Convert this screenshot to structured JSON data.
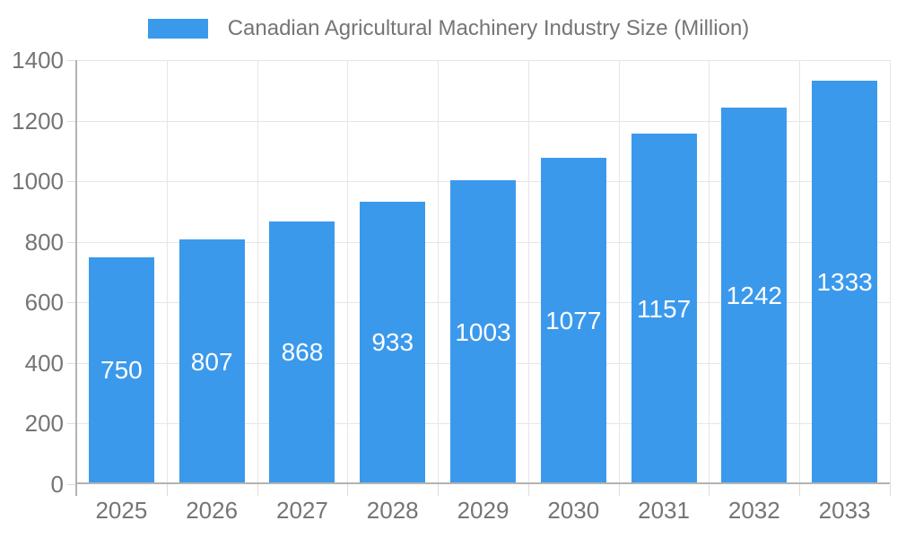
{
  "legend": {
    "label": "Canadian Agricultural Machinery Industry Size (Million)"
  },
  "chart_data": {
    "type": "bar",
    "title": "Canadian Agricultural Machinery Industry Size (Million)",
    "categories": [
      "2025",
      "2026",
      "2027",
      "2028",
      "2029",
      "2030",
      "2031",
      "2032",
      "2033"
    ],
    "values": [
      750,
      807,
      868,
      933,
      1003,
      1077,
      1157,
      1242,
      1333
    ],
    "series": [
      {
        "name": "Canadian Agricultural Machinery Industry Size (Million)",
        "values": [
          750,
          807,
          868,
          933,
          1003,
          1077,
          1157,
          1242,
          1333
        ]
      }
    ],
    "xlabel": "",
    "ylabel": "",
    "ylim": [
      0,
      1400
    ],
    "yticks": [
      0,
      200,
      400,
      600,
      800,
      1000,
      1200,
      1400
    ],
    "grid": true,
    "legend_position": "top",
    "value_labels_inside_bars": true,
    "colors": {
      "bar": "#3B99EC",
      "grid": "#e6e6e6",
      "tick": "#dcdcdc",
      "axis_line": "#b3b3b3",
      "axis_text": "#757575",
      "bar_label": "#ffffff",
      "background": "#ffffff"
    }
  }
}
